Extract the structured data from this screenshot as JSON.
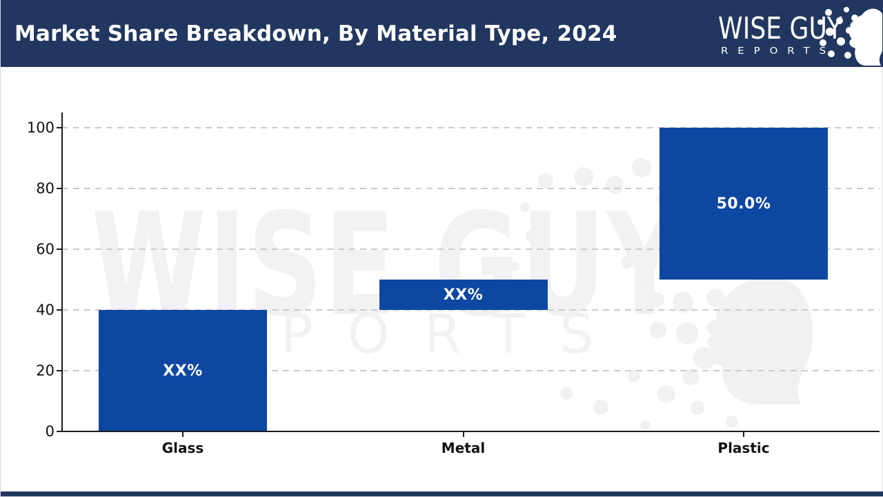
{
  "header": {
    "title": "Market Share Breakdown, By Material Type, 2024",
    "logo_line1": "WISE GUY",
    "logo_line2": "REPORTS"
  },
  "watermark": {
    "line1": "WISE GUY",
    "line2": "REPORTS"
  },
  "colors": {
    "header_bg": "#21375F",
    "bar": "#0D47A1",
    "bar_label_text": "#FFFFFF",
    "gridline": "#CBCBCB",
    "axis": "#1A1A1A",
    "watermark": "#F2F2F4"
  },
  "chart_data": {
    "type": "bar",
    "variant": "waterfall",
    "title": "Market Share Breakdown, By Material Type, 2024",
    "categories": [
      "Glass",
      "Metal",
      "Plastic"
    ],
    "bars": [
      {
        "category": "Glass",
        "start": 0,
        "end": 40,
        "label": "XX%"
      },
      {
        "category": "Metal",
        "start": 40,
        "end": 50,
        "label": "XX%"
      },
      {
        "category": "Plastic",
        "start": 50,
        "end": 100,
        "label": "50.0%"
      }
    ],
    "yticks": [
      0,
      20,
      40,
      60,
      80,
      100
    ],
    "ylim": [
      0,
      105
    ],
    "xlabel": "",
    "ylabel": "",
    "grid": "horizontal-dashed",
    "legend": "none",
    "bar_color": "#0D47A1",
    "unit": "percent"
  }
}
